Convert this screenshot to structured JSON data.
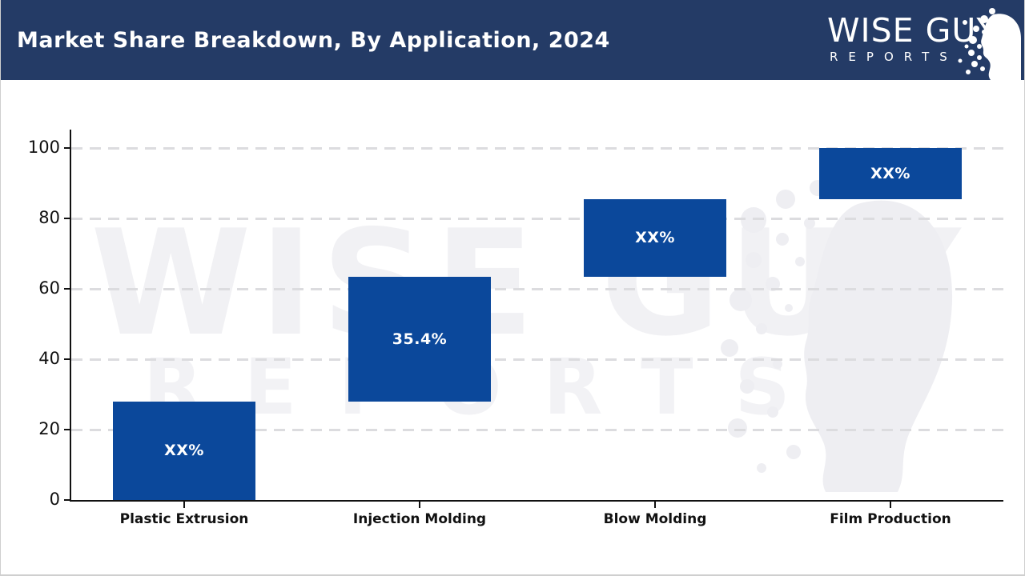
{
  "header": {
    "title": "Market Share Breakdown, By Application, 2024",
    "logo": {
      "line1": "WISE GUY",
      "line2": "REPORTS"
    }
  },
  "watermark": {
    "line1": "WISE GUY",
    "line2": "REPORTS"
  },
  "colors": {
    "header_bg": "#243B66",
    "bar": "#0B489B",
    "grid": "#DCDCDF",
    "axis": "#111111",
    "bar_label": "#FFFFFF",
    "watermark": "#F1F1F4"
  },
  "chart_data": {
    "type": "bar",
    "subtype": "waterfall",
    "title": "Market Share Breakdown, By Application, 2024",
    "categories": [
      "Plastic Extrusion",
      "Injection Molding",
      "Blow Molding",
      "Film Production"
    ],
    "segments": [
      {
        "category": "Plastic Extrusion",
        "start": 0,
        "end": 28,
        "label": "XX%"
      },
      {
        "category": "Injection Molding",
        "start": 28,
        "end": 63.4,
        "label": "35.4%"
      },
      {
        "category": "Blow Molding",
        "start": 63.4,
        "end": 85.5,
        "label": "XX%"
      },
      {
        "category": "Film Production",
        "start": 85.5,
        "end": 100,
        "label": "XX%"
      }
    ],
    "yticks": [
      0,
      20,
      40,
      60,
      80,
      100
    ],
    "ylim": [
      0,
      100
    ],
    "xlabel": "",
    "ylabel": "",
    "grid": "horizontal-dashed",
    "legend": "none"
  }
}
